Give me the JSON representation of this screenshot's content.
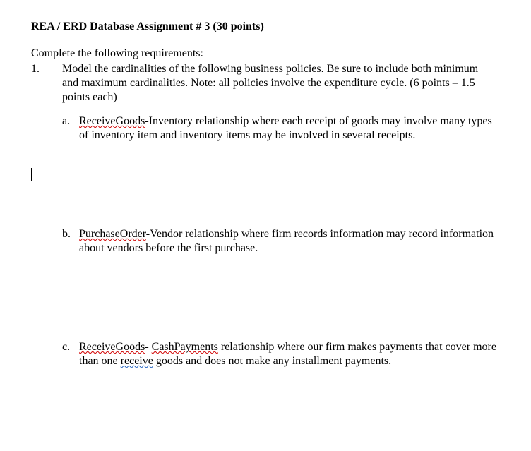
{
  "title": "REA / ERD Database Assignment # 3 (30 points)",
  "instruction": "Complete the following requirements:",
  "question1": {
    "number": "1.",
    "text": "Model the cardinalities of the following business policies.  Be sure to include both minimum and maximum cardinalities.  Note:  all policies involve the expenditure cycle. (6 points – 1.5 points each)"
  },
  "subA": {
    "letter": "a.",
    "term1": "ReceiveGoods",
    "rest": "-Inventory relationship where each receipt of goods may involve many types of inventory item and inventory items may be involved in several receipts."
  },
  "subB": {
    "letter": "b.",
    "term1": "PurchaseOrder",
    "rest": "-Vendor relationship where firm records information may record information about vendors before the first purchase."
  },
  "subC": {
    "letter": "c.",
    "term1": "ReceiveGoods",
    "dash": "- ",
    "term2": "CashPayments",
    "mid": " relationship where our firm makes payments that cover more than one ",
    "term3": "receive",
    "tail": " goods and does not make any installment payments."
  },
  "colors": {
    "text": "#000000",
    "background": "#ffffff",
    "spellcheck_red": "#d00000",
    "grammar_blue": "#2060c0"
  },
  "typography": {
    "font_family": "Times New Roman",
    "body_fontsize": 16,
    "title_weight": "bold"
  }
}
